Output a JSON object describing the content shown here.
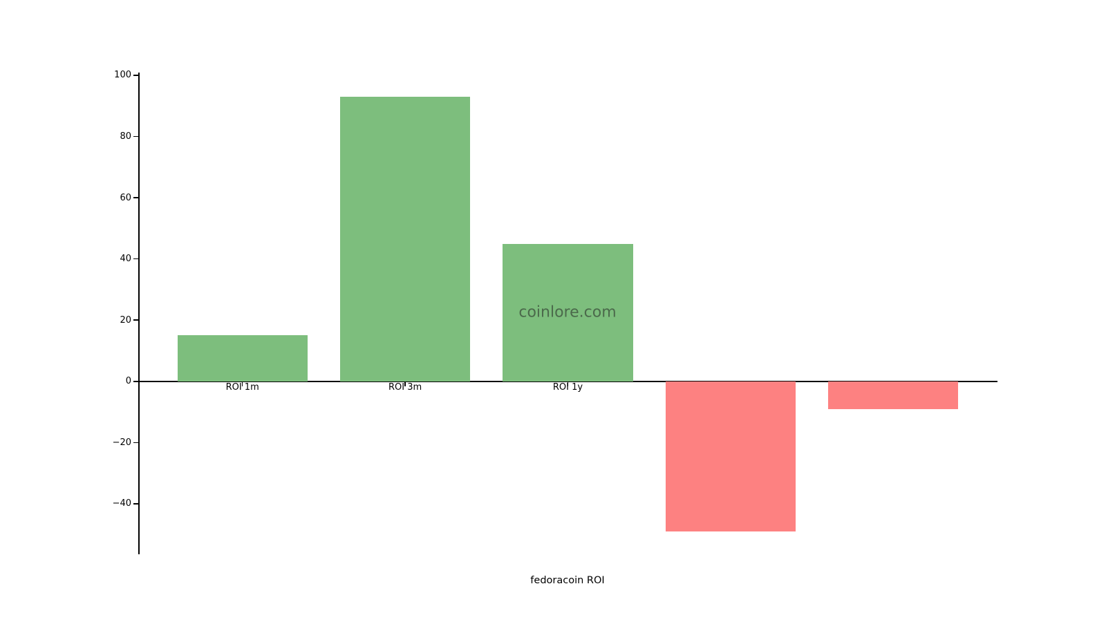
{
  "chart_data": {
    "type": "bar",
    "title": "",
    "xlabel": "fedoracoin ROI",
    "watermark": "coinlore.com",
    "categories": [
      "ROI 1m",
      "ROI 3m",
      "ROI 1y",
      "",
      ""
    ],
    "values": [
      15,
      93,
      45,
      -49,
      -9
    ],
    "yticks": [
      100,
      80,
      60,
      40,
      20,
      0,
      -20,
      -40
    ],
    "ylim": [
      -56.5,
      100.9
    ],
    "grid": false,
    "legend": "none",
    "colors": {
      "positive_bar": "#7DBE7D",
      "negative_bar": "#FD8181",
      "axis": "#000000",
      "text": "#000000"
    }
  }
}
